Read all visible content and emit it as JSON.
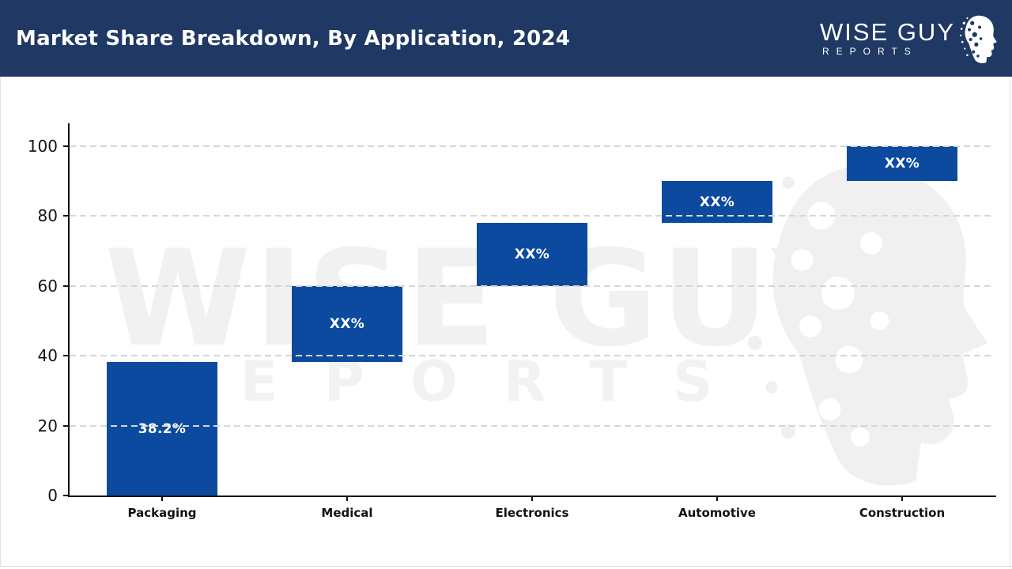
{
  "header": {
    "title": "Market Share Breakdown, By Application, 2024",
    "background": "#1f3864"
  },
  "logo": {
    "line1": "WISE GUY",
    "line2": "REPORTS"
  },
  "watermark": {
    "line1": "WISE GUY",
    "line2": "REPORTS"
  },
  "chart_data": {
    "type": "bar",
    "subtype": "waterfall",
    "title": "Market Share Breakdown, By Application, 2024",
    "categories": [
      "Packaging",
      "Medical",
      "Electronics",
      "Automotive",
      "Construction"
    ],
    "segments": [
      {
        "category": "Packaging",
        "start": 0,
        "end": 38.2,
        "label": "38.2%"
      },
      {
        "category": "Medical",
        "start": 38.2,
        "end": 60,
        "label": "XX%"
      },
      {
        "category": "Electronics",
        "start": 60,
        "end": 78,
        "label": "XX%"
      },
      {
        "category": "Automotive",
        "start": 78,
        "end": 90,
        "label": "XX%"
      },
      {
        "category": "Construction",
        "start": 90,
        "end": 100,
        "label": "XX%"
      }
    ],
    "xlabel": "",
    "ylabel": "",
    "yticks": [
      0,
      20,
      40,
      60,
      80,
      100
    ],
    "ylim": [
      0,
      105.2
    ],
    "grid": true,
    "gridline_style": "dashed",
    "gridline_color": "#d6d6d6",
    "bar_color": "#0b4a9e",
    "bar_label_color": "#ffffff",
    "axis_color": "#111111",
    "legend": false
  }
}
